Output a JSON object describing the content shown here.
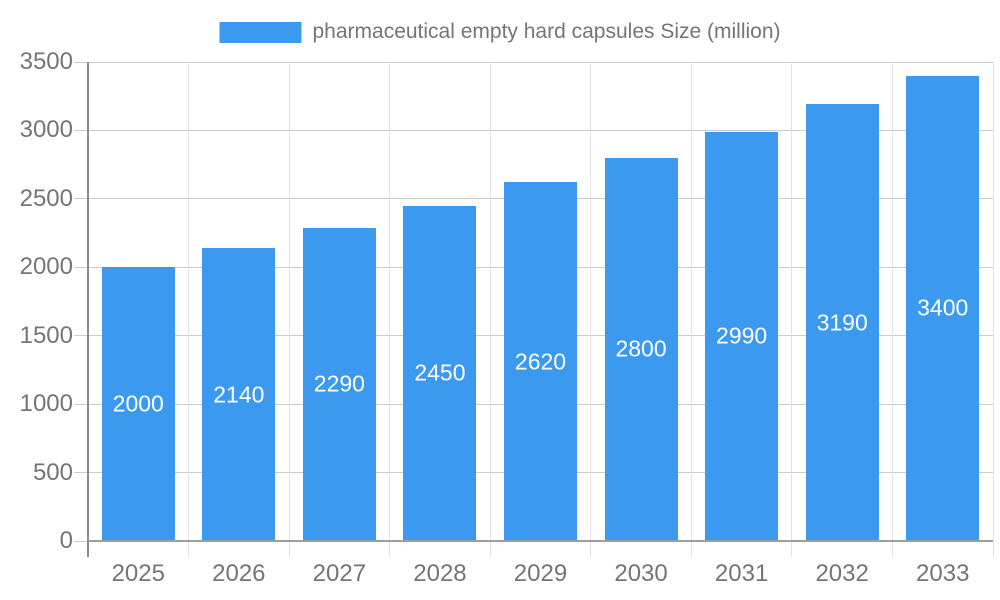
{
  "chart_data": {
    "type": "bar",
    "title": "pharmaceutical empty hard capsules Size (million)",
    "categories": [
      "2025",
      "2026",
      "2027",
      "2028",
      "2029",
      "2030",
      "2031",
      "2032",
      "2033"
    ],
    "values": [
      2000,
      2140,
      2290,
      2450,
      2620,
      2800,
      2990,
      3190,
      3400
    ],
    "yticks": [
      0,
      500,
      1000,
      1500,
      2000,
      2500,
      3000,
      3500
    ],
    "ylim": [
      0,
      3500
    ],
    "xlabel": "",
    "ylabel": "",
    "grid": true,
    "legend_position": "top",
    "colors": {
      "bar": "#3B99F0",
      "bar_label": "#FFFFFF",
      "axis_text": "#757575",
      "gridline": "#CCCCCC",
      "minor_gridline": "#E3E3E3",
      "axis_line": "#8A8A8A",
      "baseline": "#9E9E9E",
      "background": "#FFFFFF"
    }
  }
}
